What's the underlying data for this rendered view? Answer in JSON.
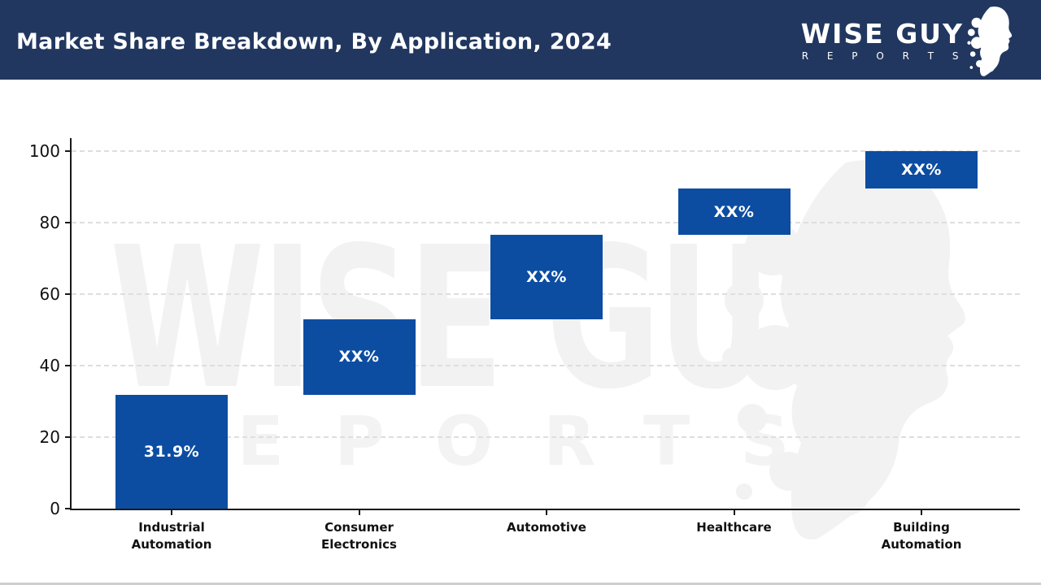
{
  "header": {
    "title": "Market Share Breakdown, By Application, 2024",
    "logo": {
      "line1": "WISE GUY",
      "line2": "R E P O R T S"
    }
  },
  "watermark": {
    "line1": "WISE GUY",
    "line2": "REPORTS"
  },
  "chart_data": {
    "type": "bar",
    "subtype": "waterfall",
    "title": "Market Share Breakdown, By Application, 2024",
    "xlabel": "",
    "ylabel": "",
    "categories": [
      {
        "label": "Industrial Automation",
        "lines": [
          "Industrial",
          "Automation"
        ]
      },
      {
        "label": "Consumer Electronics",
        "lines": [
          "Consumer",
          "Electronics"
        ]
      },
      {
        "label": "Automotive",
        "lines": [
          "Automotive"
        ]
      },
      {
        "label": "Healthcare",
        "lines": [
          "Healthcare"
        ]
      },
      {
        "label": "Building Automation",
        "lines": [
          "Building",
          "Automation"
        ]
      }
    ],
    "segments": [
      [
        0,
        31.9
      ],
      [
        31.9,
        53.0
      ],
      [
        53.0,
        76.5
      ],
      [
        76.5,
        89.5
      ],
      [
        89.5,
        100
      ]
    ],
    "values": [
      31.9,
      21.1,
      23.5,
      13.0,
      10.5
    ],
    "bar_labels": [
      "31.9%",
      "XX%",
      "XX%",
      "XX%",
      "XX%"
    ],
    "yticks": [
      0,
      20,
      40,
      60,
      80,
      100
    ],
    "ylim": [
      0,
      103.5
    ],
    "grid": true,
    "legend": null,
    "bar_color": "#0c4da2",
    "bar_label_color": "#ffffff",
    "grid_color": "#dedede",
    "axis_color": "#1a1a1a"
  },
  "colors": {
    "header_bg": "#21375f",
    "page_bg": "#ffffff",
    "watermark": "#f2f2f2",
    "bottom_border": "#cfcfcf"
  }
}
